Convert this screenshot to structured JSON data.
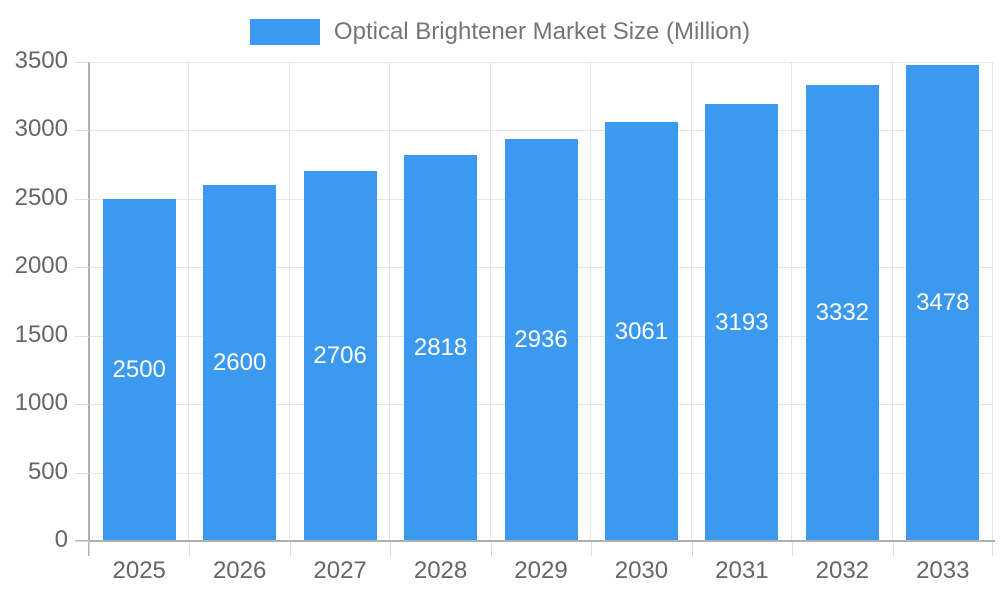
{
  "chart_data": {
    "type": "bar",
    "title": "",
    "legend": "Optical Brightener Market Size (Million)",
    "legend_position": "top-center",
    "categories": [
      "2025",
      "2026",
      "2027",
      "2028",
      "2029",
      "2030",
      "2031",
      "2032",
      "2033"
    ],
    "series": [
      {
        "name": "Optical Brightener Market Size (Million)",
        "values": [
          2500,
          2600,
          2706,
          2818,
          2936,
          3061,
          3193,
          3332,
          3478
        ]
      }
    ],
    "bar_value_labels": [
      "2500",
      "2600",
      "2706",
      "2818",
      "2936",
      "3061",
      "3193",
      "3332",
      "3478"
    ],
    "xlabel": "",
    "ylabel": "",
    "ylim": [
      0,
      3500
    ],
    "yticks": [
      0,
      500,
      1000,
      1500,
      2000,
      2500,
      3000,
      3500
    ],
    "grid": "on",
    "colors": {
      "bar": "#3B9AF0",
      "bar_label_text": "#FFFFFF",
      "grid": "#E6E6E6",
      "axis": "#B0B0B0",
      "tick_mark": "#DCDCDC",
      "tick_text": "#666666",
      "legend_text": "#757575",
      "background": "#FFFFFF"
    }
  }
}
